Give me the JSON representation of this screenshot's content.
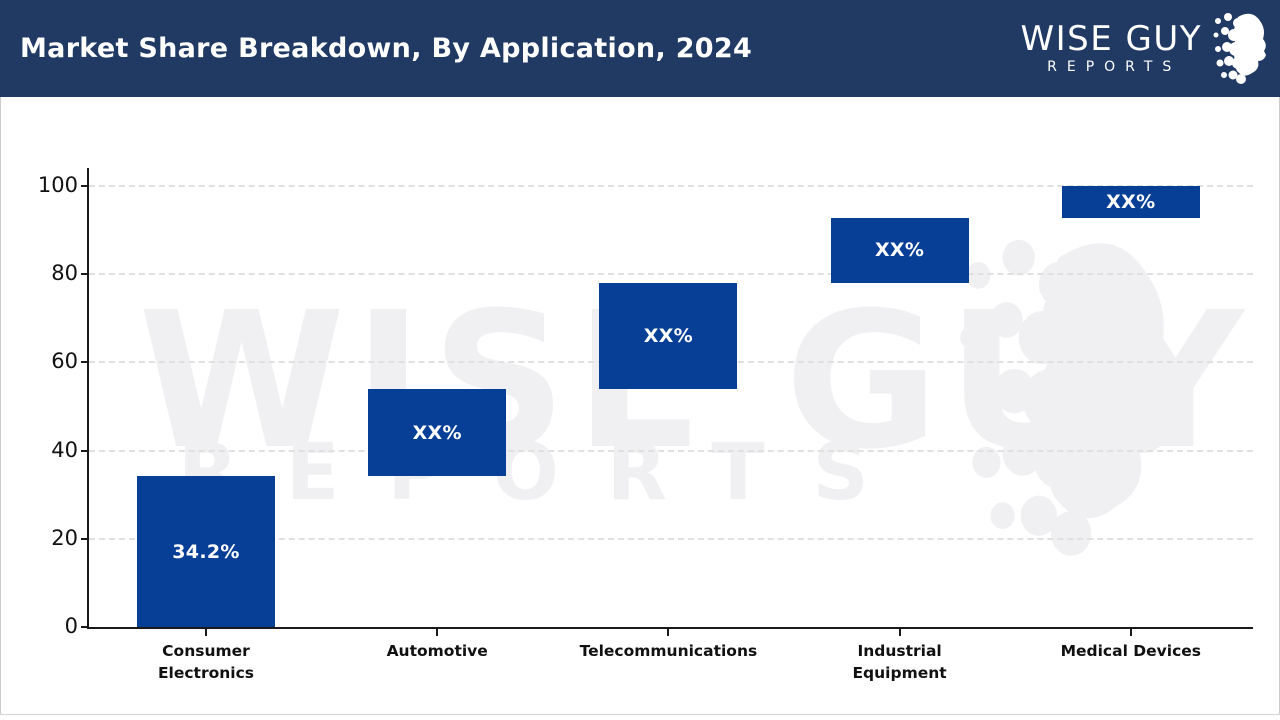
{
  "header": {
    "title": "Market Share Breakdown, By Application, 2024",
    "bg_color": "#213a64",
    "logo": {
      "name": "WISE GUY",
      "subtitle": "REPORTS"
    }
  },
  "watermark": {
    "line1": "WISE GUY",
    "line2": "REPORTS"
  },
  "chart_data": {
    "type": "bar",
    "subtype": "waterfall-floating-bars",
    "title": "Market Share Breakdown, By Application, 2024",
    "categories": [
      "Consumer Electronics",
      "Automotive",
      "Telecommunications",
      "Industrial Equipment",
      "Medical Devices"
    ],
    "bars": [
      {
        "category": "Consumer\nElectronics",
        "start": 0,
        "end": 34.2,
        "label": "34.2%"
      },
      {
        "category": "Automotive",
        "start": 34.2,
        "end": 54,
        "label": "XX%"
      },
      {
        "category": "Telecommunications",
        "start": 54,
        "end": 78,
        "label": "XX%"
      },
      {
        "category": "Industrial\nEquipment",
        "start": 78,
        "end": 92.8,
        "label": "XX%"
      },
      {
        "category": "Medical Devices",
        "start": 92.8,
        "end": 100,
        "label": "XX%"
      }
    ],
    "xlabel": "",
    "ylabel": "",
    "ylim": [
      0,
      104
    ],
    "yticks": [
      0,
      20,
      40,
      60,
      80,
      100
    ],
    "grid": "horizontal-dashed",
    "legend": "none",
    "bar_color": "#073f97",
    "bar_label_color": "#ffffff"
  }
}
